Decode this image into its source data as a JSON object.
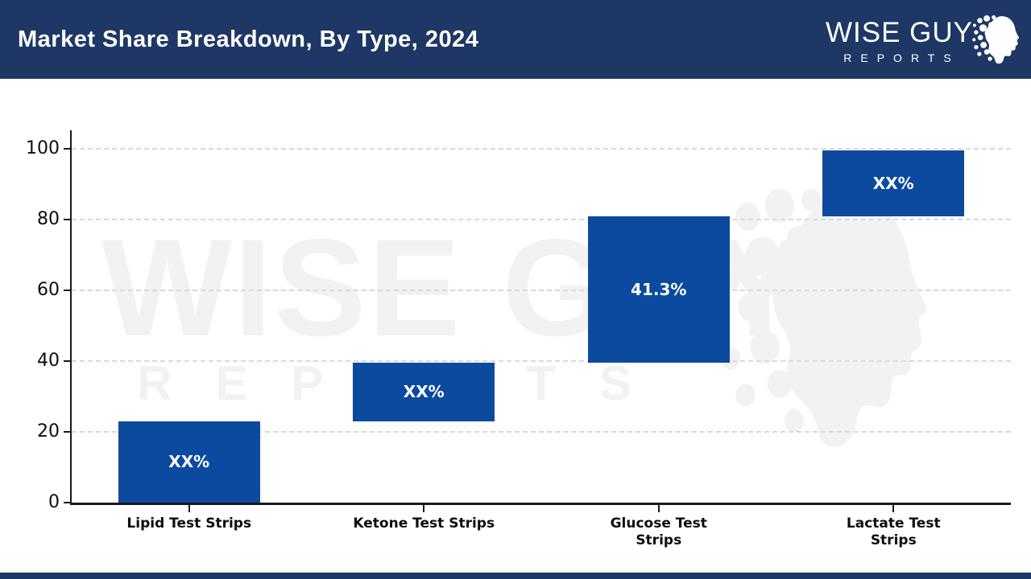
{
  "header": {
    "title": "Market Share Breakdown, By Type, 2024",
    "logo": {
      "name": "WISE GUY",
      "tagline": "REPORTS"
    }
  },
  "watermark": {
    "brand": "WISE GUY",
    "tagline": "REPORTS"
  },
  "chart_data": {
    "type": "bar",
    "subtype": "waterfall",
    "title": "Market Share Breakdown, By Type, 2024",
    "categories": [
      "Lipid Test Strips",
      "Ketone Test Strips",
      "Glucose Test\nStrips",
      "Lactate Test\nStrips"
    ],
    "segments": [
      {
        "category": "Lipid Test Strips",
        "start": 0,
        "end": 23,
        "value_label": "XX%"
      },
      {
        "category": "Ketone Test Strips",
        "start": 23,
        "end": 39.5,
        "value_label": "XX%"
      },
      {
        "category": "Glucose Test Strips",
        "start": 39.5,
        "end": 80.8,
        "value_label": "41.3%"
      },
      {
        "category": "Lactate Test Strips",
        "start": 80.8,
        "end": 99.6,
        "value_label": "XX%"
      }
    ],
    "ylim": [
      0,
      100
    ],
    "yticks": [
      0,
      20,
      40,
      60,
      80,
      100
    ],
    "xlabel": "",
    "ylabel": "",
    "grid": "horizontal-dashed",
    "legend": "none"
  },
  "colors": {
    "header_bg": "#1e3765",
    "footer_bg": "#1e3765",
    "bar": "#0c4a9f",
    "bar_label": "#ffffff",
    "grid": "#d9d9d9",
    "axis": "#1a1a1a",
    "tick_label": "#0d0d0d",
    "watermark": "#f2f2f3"
  }
}
